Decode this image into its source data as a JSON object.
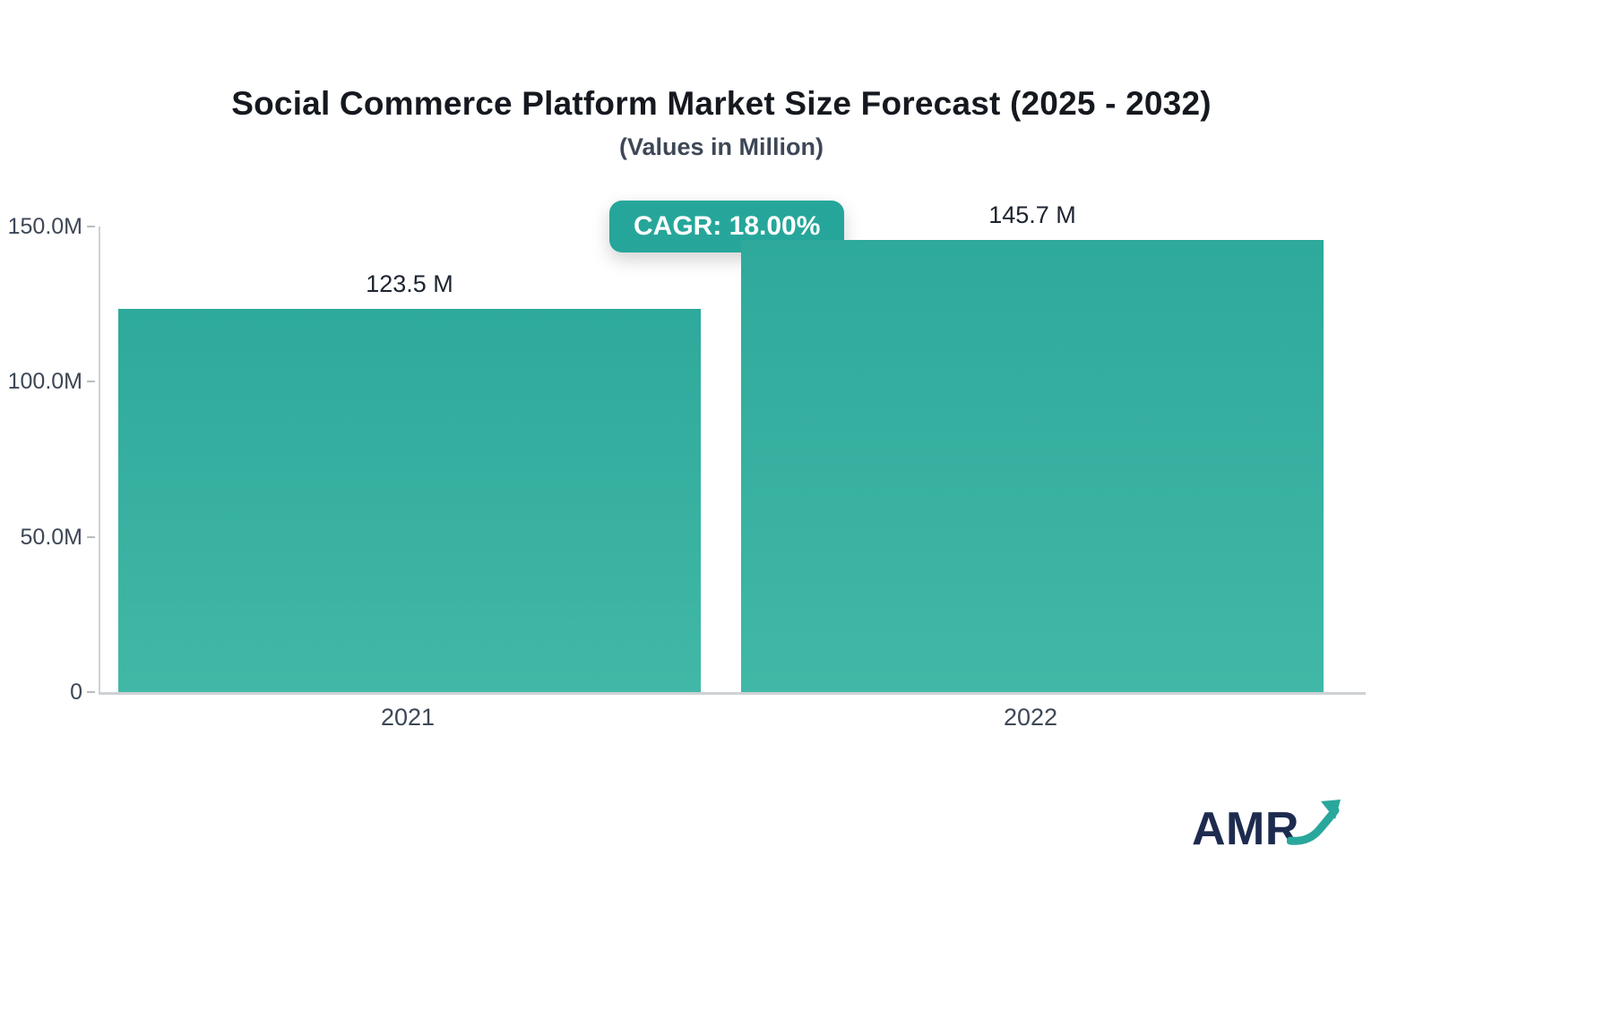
{
  "chart_data": {
    "type": "bar",
    "title": "Social Commerce Platform Market Size Forecast (2025 - 2032)",
    "subtitle": "(Values in Million)",
    "categories": [
      "2021",
      "2022"
    ],
    "values": [
      123.5,
      145.7
    ],
    "value_labels": [
      "123.5 M",
      "145.7 M"
    ],
    "xlabel": "",
    "ylabel": "",
    "ylim": [
      0,
      150
    ],
    "y_ticks": [
      {
        "value": 150,
        "label": "150.0M"
      },
      {
        "value": 100,
        "label": "100.0M"
      },
      {
        "value": 50,
        "label": "50.0M"
      },
      {
        "value": 0,
        "label": "0"
      }
    ],
    "grid": false,
    "legend": false,
    "cagr_badge": "CAGR: 18.00%"
  },
  "colors": {
    "bar_top": "#2ea99b",
    "bar_bottom": "#41b8a7",
    "badge_background": "#26a69a",
    "badge_text": "#ffffff",
    "axis_line": "#cfd2d4",
    "logo_text_color": "#1d2b4f",
    "logo_arrow_color": "#2aa79c"
  },
  "branding": {
    "logo_text": "AMR"
  }
}
